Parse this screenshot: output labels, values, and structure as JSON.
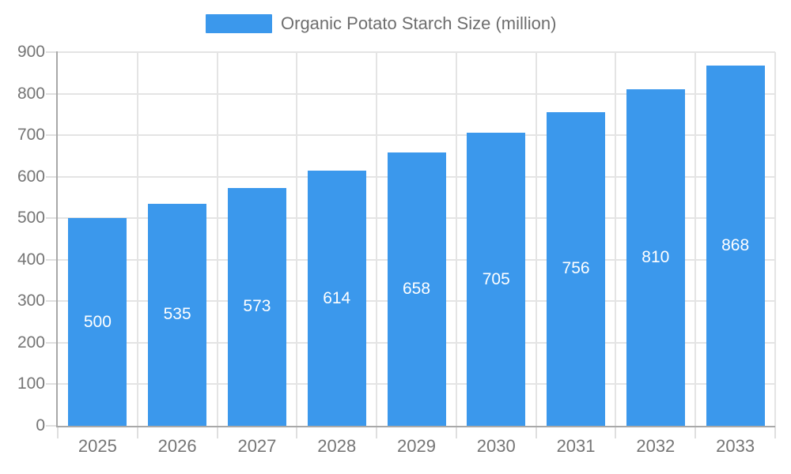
{
  "legend": {
    "label": "Organic Potato Starch Size (million)",
    "swatch_icon": "legend-swatch"
  },
  "chart_data": {
    "type": "bar",
    "title": "Organic Potato Starch Size (million)",
    "categories": [
      "2025",
      "2026",
      "2027",
      "2028",
      "2029",
      "2030",
      "2031",
      "2032",
      "2033"
    ],
    "values": [
      500,
      535,
      573,
      614,
      658,
      705,
      756,
      810,
      868
    ],
    "xlabel": "",
    "ylabel": "",
    "ylim": [
      0,
      900
    ],
    "ytick_step": 100,
    "grid": true,
    "legend_position": "top-center",
    "value_label_position": "inside-center"
  },
  "style": {
    "bar_color": "#3B98EC",
    "grid_color": "#E4E4E4",
    "tick_color": "#DFDFDF",
    "axis_color": "#A8A8A8",
    "axis_text_color": "#757575",
    "legend_text_color": "#6E6E6E",
    "value_text_color": "#FFFFFF",
    "background": "#FFFFFF"
  }
}
